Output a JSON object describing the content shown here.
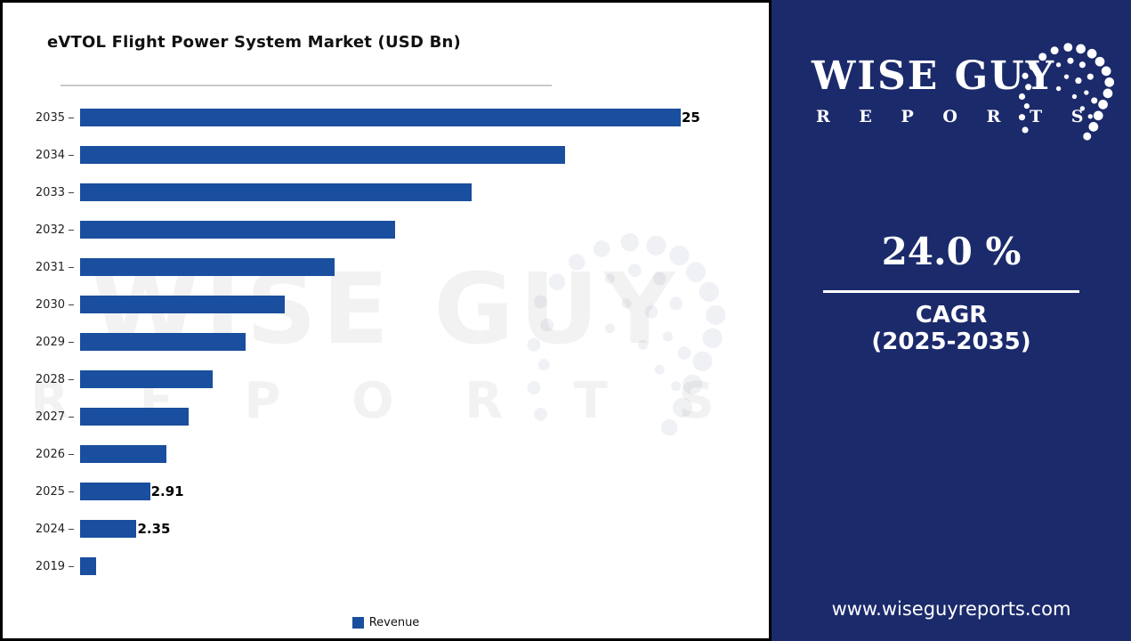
{
  "chart": {
    "title": "eVTOL Flight Power System Market (USD Bn)",
    "watermark_line1": "WISE GUY",
    "watermark_line2": "R E P O R T S"
  },
  "chart_data": {
    "type": "bar",
    "orientation": "horizontal",
    "title": "eVTOL Flight Power System Market (USD Bn)",
    "categories": [
      "2035",
      "2034",
      "2033",
      "2032",
      "2031",
      "2030",
      "2029",
      "2028",
      "2027",
      "2026",
      "2025",
      "2024",
      "2019"
    ],
    "values": [
      25,
      20.2,
      16.3,
      13.1,
      10.6,
      8.5,
      6.9,
      5.5,
      4.5,
      3.6,
      2.91,
      2.35,
      0.66
    ],
    "value_labels": {
      "2035": "25",
      "2025": "2.91",
      "2024": "2.35"
    },
    "xlim": [
      0,
      26
    ],
    "xlabel": "",
    "ylabel": "",
    "bar_color": "#1a4e9e",
    "legend": {
      "label": "Revenue",
      "position": "bottom"
    }
  },
  "panel": {
    "logo": {
      "line1": "WISE GUY",
      "line2": "R E P O R T S"
    },
    "cagr_value": "24.0 %",
    "cagr_line1": "CAGR",
    "cagr_line2": "(2025-2035)",
    "website": "www.wiseguyreports.com",
    "bg_color": "#1b2a6b"
  }
}
